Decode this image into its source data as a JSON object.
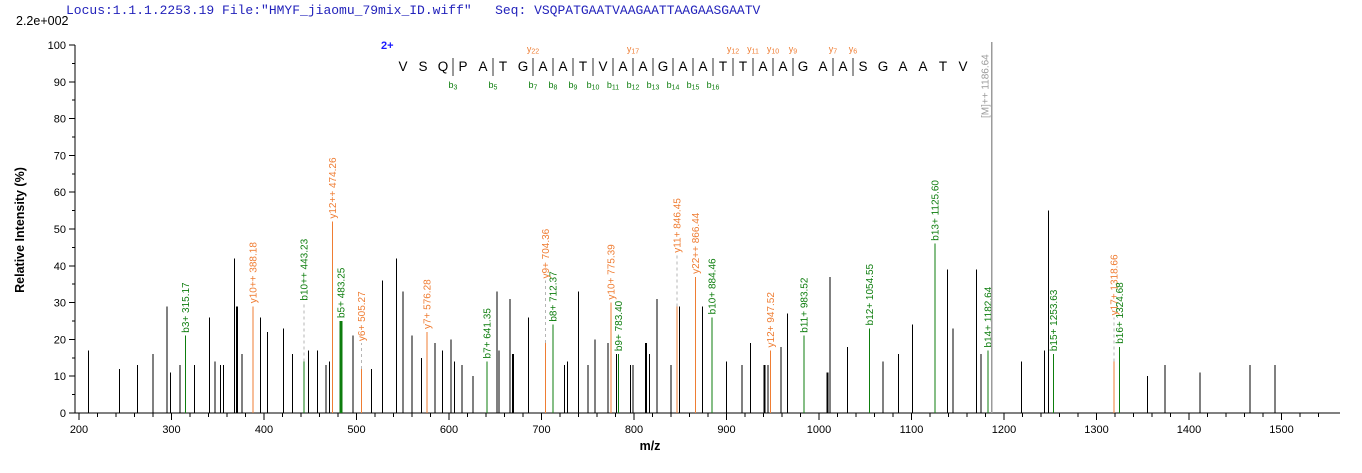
{
  "header": {
    "text": "Locus:1.1.1.2253.19 File:\"HMYF_jiaomu_79mix_ID.wiff\"   Seq: VSQPATGAATVAAGAATTAAGAASGAATV"
  },
  "y_axis": {
    "title": "Relative  Intensity (%)",
    "max_label": "2.2e+002",
    "min": 0,
    "max": 100,
    "major_step": 10,
    "minor_step": 5
  },
  "x_axis": {
    "title": "m/z",
    "min": 200,
    "max": 1500,
    "major_step": 100,
    "minor_step": 20
  },
  "annotation": {
    "charge": "2+",
    "sequence": "VSQPATGAATVAAGAATTAAGAASGAATV",
    "fragment_sites": [
      {
        "after": 3,
        "b": "b3"
      },
      {
        "after": 5,
        "b": "b5"
      },
      {
        "after": 7,
        "b": "b7",
        "y": "y22"
      },
      {
        "after": 8,
        "b": "b8"
      },
      {
        "after": 9,
        "b": "b9"
      },
      {
        "after": 10,
        "b": "b10"
      },
      {
        "after": 11,
        "b": "b11"
      },
      {
        "after": 12,
        "b": "b12",
        "y": "y17"
      },
      {
        "after": 13,
        "b": "b13"
      },
      {
        "after": 14,
        "b": "b14"
      },
      {
        "after": 15,
        "b": "b15"
      },
      {
        "after": 16,
        "b": "b16"
      },
      {
        "after": 17,
        "y": "y12"
      },
      {
        "after": 18,
        "y": "y11"
      },
      {
        "after": 19,
        "y": "y10"
      },
      {
        "after": 20,
        "y": "y9"
      },
      {
        "after": 22,
        "y": "y7"
      },
      {
        "after": 23,
        "y": "y6"
      }
    ]
  },
  "colors": {
    "b_ion": "#0d7d0d",
    "y_ion": "#ef7d33",
    "peak": "#000000",
    "precursor": "#9b9b9b",
    "leader": "#b5b5b5",
    "header_text": "#2222bb",
    "charge_text": "#1a1aff"
  },
  "chart_data": {
    "type": "bar",
    "title": "MS/MS fragment spectrum, Locus 1.1.1.2253.19, peptide VSQPATGAATVAAGAATTAAGAASGAATV (2+)",
    "xlabel": "m/z",
    "ylabel": "Relative  Intensity (%)",
    "xlim": [
      200,
      1500
    ],
    "ylim": [
      0,
      100
    ],
    "max_intensity_label": "2.2e+002",
    "precursor_line": {
      "label": "[M]++ 1186.64",
      "mz": 1186.64,
      "top_pct": 100
    },
    "labeled_peaks": [
      {
        "label": "b3+ 315.17",
        "series": "b",
        "mz": 315.17,
        "intensity_pct": 21
      },
      {
        "label": "y10++ 388.18",
        "series": "y",
        "mz": 388.18,
        "intensity_pct": 29
      },
      {
        "label": "b10++ 443.23",
        "series": "b",
        "mz": 443.23,
        "intensity_pct": 14,
        "dashed_leader": true,
        "label_anchor_pct": 30
      },
      {
        "label": "y12++ 474.26",
        "series": "y",
        "mz": 474.26,
        "intensity_pct": 52
      },
      {
        "label": "b5+ 483.25",
        "series": "b",
        "mz": 483.25,
        "intensity_pct": 25,
        "width": 3
      },
      {
        "label": "y6+ 505.27",
        "series": "y",
        "mz": 505.27,
        "intensity_pct": 12,
        "dashed_leader": true,
        "label_anchor_pct": 19
      },
      {
        "label": "y7+ 576.28",
        "series": "y",
        "mz": 576.28,
        "intensity_pct": 22
      },
      {
        "label": "b7+ 641.35",
        "series": "b",
        "mz": 641.35,
        "intensity_pct": 14
      },
      {
        "label": "y9+ 704.36",
        "series": "y",
        "mz": 704.36,
        "intensity_pct": 19,
        "dashed_leader": true,
        "label_anchor_pct": 36
      },
      {
        "label": "b8+ 712.37",
        "series": "b",
        "mz": 712.37,
        "intensity_pct": 24
      },
      {
        "label": "y10+ 775.39",
        "series": "y",
        "mz": 775.39,
        "intensity_pct": 30
      },
      {
        "label": "b9+ 783.40",
        "series": "b",
        "mz": 783.4,
        "intensity_pct": 16
      },
      {
        "label": "y11+ 846.45",
        "series": "y",
        "mz": 846.45,
        "intensity_pct": 29,
        "dashed_leader": true,
        "label_anchor_pct": 43
      },
      {
        "label": "y22++ 866.44",
        "series": "y",
        "mz": 866.44,
        "intensity_pct": 37
      },
      {
        "label": "b10+ 884.46",
        "series": "b",
        "mz": 884.46,
        "intensity_pct": 26
      },
      {
        "label": "y12+ 947.52",
        "series": "y",
        "mz": 947.52,
        "intensity_pct": 17
      },
      {
        "label": "b11+ 983.52",
        "series": "b",
        "mz": 983.52,
        "intensity_pct": 21
      },
      {
        "label": "b12+ 1054.55",
        "series": "b",
        "mz": 1054.55,
        "intensity_pct": 23
      },
      {
        "label": "b13+ 1125.60",
        "series": "b",
        "mz": 1125.6,
        "intensity_pct": 46
      },
      {
        "label": "b14+ 1182.64",
        "series": "b",
        "mz": 1182.64,
        "intensity_pct": 17
      },
      {
        "label": "b15+ 1253.63",
        "series": "b",
        "mz": 1253.63,
        "intensity_pct": 16
      },
      {
        "label": "y17+ 1318.66",
        "series": "y",
        "mz": 1318.66,
        "intensity_pct": 14,
        "dashed_leader": true,
        "label_anchor_pct": 26
      },
      {
        "label": "b16+ 1324.68",
        "series": "b",
        "mz": 1324.68,
        "intensity_pct": 18
      }
    ],
    "unlabeled_peaks": [
      [
        210,
        17
      ],
      [
        244,
        12
      ],
      [
        263,
        13
      ],
      [
        280,
        16
      ],
      [
        295,
        29
      ],
      [
        299,
        11
      ],
      [
        309,
        13
      ],
      [
        325,
        13
      ],
      [
        341,
        26
      ],
      [
        347,
        14
      ],
      [
        353,
        13
      ],
      [
        356,
        13
      ],
      [
        368,
        42
      ],
      [
        371,
        29,
        2
      ],
      [
        376,
        16
      ],
      [
        396,
        26
      ],
      [
        404,
        22
      ],
      [
        421,
        23
      ],
      [
        431,
        16
      ],
      [
        448,
        17
      ],
      [
        458,
        17
      ],
      [
        467,
        13
      ],
      [
        471,
        14
      ],
      [
        496,
        21
      ],
      [
        516,
        12
      ],
      [
        528,
        36
      ],
      [
        543,
        42
      ],
      [
        550,
        33
      ],
      [
        560,
        21
      ],
      [
        570,
        15
      ],
      [
        585,
        19
      ],
      [
        593,
        17
      ],
      [
        602,
        20
      ],
      [
        606,
        14
      ],
      [
        614,
        13
      ],
      [
        626,
        10
      ],
      [
        652,
        33
      ],
      [
        654,
        17
      ],
      [
        666,
        31
      ],
      [
        669,
        16,
        2
      ],
      [
        686,
        26
      ],
      [
        725,
        13
      ],
      [
        728,
        14
      ],
      [
        740,
        33
      ],
      [
        750,
        13
      ],
      [
        758,
        20
      ],
      [
        772,
        19
      ],
      [
        781,
        16
      ],
      [
        796,
        13
      ],
      [
        799,
        13
      ],
      [
        813,
        19,
        2
      ],
      [
        817,
        16
      ],
      [
        825,
        31
      ],
      [
        840,
        13
      ],
      [
        849,
        29
      ],
      [
        874,
        29
      ],
      [
        900,
        14
      ],
      [
        917,
        13
      ],
      [
        926,
        19
      ],
      [
        941,
        13,
        2
      ],
      [
        945,
        13
      ],
      [
        959,
        18
      ],
      [
        966,
        27
      ],
      [
        1009,
        11,
        2
      ],
      [
        1012,
        37
      ],
      [
        1031,
        18
      ],
      [
        1069,
        14
      ],
      [
        1086,
        16
      ],
      [
        1101,
        24
      ],
      [
        1139,
        39
      ],
      [
        1145,
        23
      ],
      [
        1170,
        39
      ],
      [
        1175,
        16
      ],
      [
        1219,
        14
      ],
      [
        1244,
        17
      ],
      [
        1248,
        55
      ],
      [
        1355,
        10
      ],
      [
        1374,
        13
      ],
      [
        1412,
        11
      ],
      [
        1466,
        13
      ],
      [
        1493,
        13
      ]
    ]
  }
}
